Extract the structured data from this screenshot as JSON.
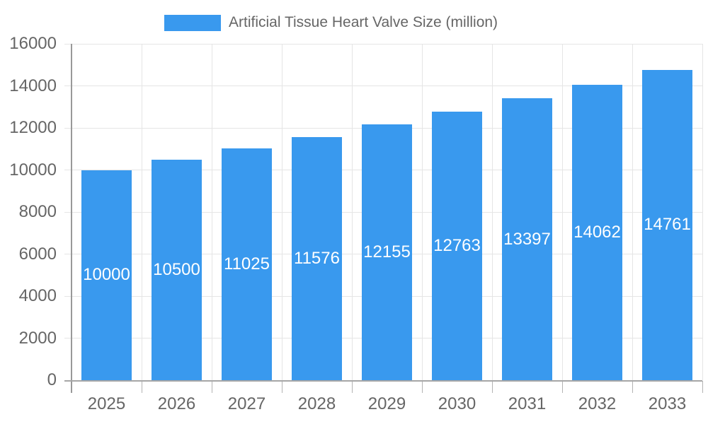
{
  "chart_data": {
    "type": "bar",
    "title": "",
    "categories": [
      "2025",
      "2026",
      "2027",
      "2028",
      "2029",
      "2030",
      "2031",
      "2032",
      "2033"
    ],
    "series": [
      {
        "name": "Artificial Tissue Heart Valve Size (million)",
        "values": [
          10000,
          10500,
          11025,
          11576,
          12155,
          12763,
          13397,
          14062,
          14761
        ],
        "color": "#3999ee"
      }
    ],
    "xlabel": "",
    "ylabel": "",
    "ylim": [
      0,
      16000
    ],
    "yticks": [
      0,
      2000,
      4000,
      6000,
      8000,
      10000,
      12000,
      14000,
      16000
    ],
    "grid": true,
    "legend_position": "top",
    "value_label_position": "inside-center",
    "value_label_color": "#ffffff",
    "axis_text_color": "#666666"
  }
}
